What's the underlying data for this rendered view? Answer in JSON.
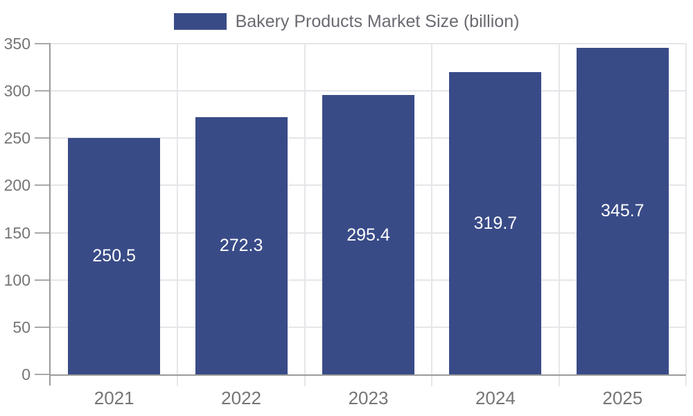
{
  "legend": {
    "label": "Bakery Products Market Size (billion)"
  },
  "colors": {
    "bar": "#394b87",
    "bar_label_text": "#ffffff",
    "axis_text": "#757575",
    "legend_text": "#6a6a72",
    "grid_line": "#e6e6ea",
    "axis_line": "#9b9b9b",
    "tick_mark": "#aaaaaa",
    "background": "#ffffff"
  },
  "chart_data": {
    "type": "bar",
    "title": "Bakery Products Market Size (billion)",
    "categories": [
      "2021",
      "2022",
      "2023",
      "2024",
      "2025"
    ],
    "values": [
      250.5,
      272.3,
      295.4,
      319.7,
      345.7
    ],
    "bar_labels": [
      "250.5",
      "272.3",
      "295.4",
      "319.7",
      "345.7"
    ],
    "xlabel": "",
    "ylabel": "",
    "ylim": [
      0,
      350
    ],
    "yticks": [
      0,
      50,
      100,
      150,
      200,
      250,
      300,
      350
    ],
    "grid": true,
    "legend_position": "top-center",
    "bar_label_position": "center-inside"
  }
}
